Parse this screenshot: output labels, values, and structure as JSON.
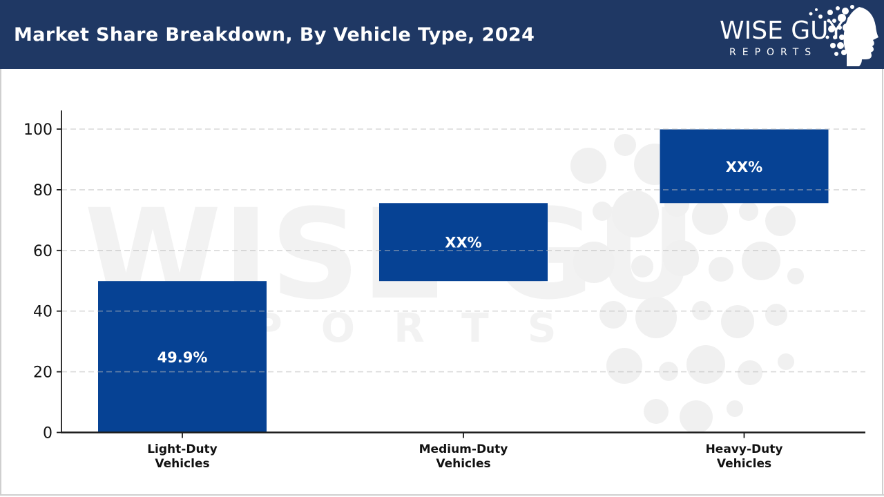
{
  "header": {
    "title": "Market Share Breakdown, By Vehicle Type, 2024",
    "bg_color": "#1F3864",
    "logo_line1": "WISE GUY",
    "logo_line2": "REPORTS"
  },
  "watermark": {
    "line1": "WISE GU",
    "line2": "REPORTS"
  },
  "chart_data": {
    "type": "bar",
    "subtype": "floating-stacked-percentage",
    "title": "Market Share Breakdown, By Vehicle Type, 2024",
    "categories": [
      "Light-Duty Vehicles",
      "Medium-Duty Vehicles",
      "Heavy-Duty Vehicles"
    ],
    "segments": [
      {
        "category": "Light-Duty Vehicles",
        "start": 0,
        "end": 49.9,
        "label": "49.9%"
      },
      {
        "category": "Medium-Duty Vehicles",
        "start": 49.9,
        "end": 75.6,
        "label": "XX%"
      },
      {
        "category": "Heavy-Duty Vehicles",
        "start": 75.6,
        "end": 99.9,
        "label": "XX%"
      }
    ],
    "yticks": [
      0,
      20,
      40,
      60,
      80,
      100
    ],
    "ylim": [
      0,
      106
    ],
    "xlabel": "",
    "ylabel": "",
    "grid": "horizontal-dashed",
    "legend": "none",
    "bar_color": "#064294",
    "bar_label_color": "#ffffff",
    "axis_color": "#1c1c1c",
    "gridline_color": "#b9b9b9",
    "tick_label_color": "#111111"
  }
}
